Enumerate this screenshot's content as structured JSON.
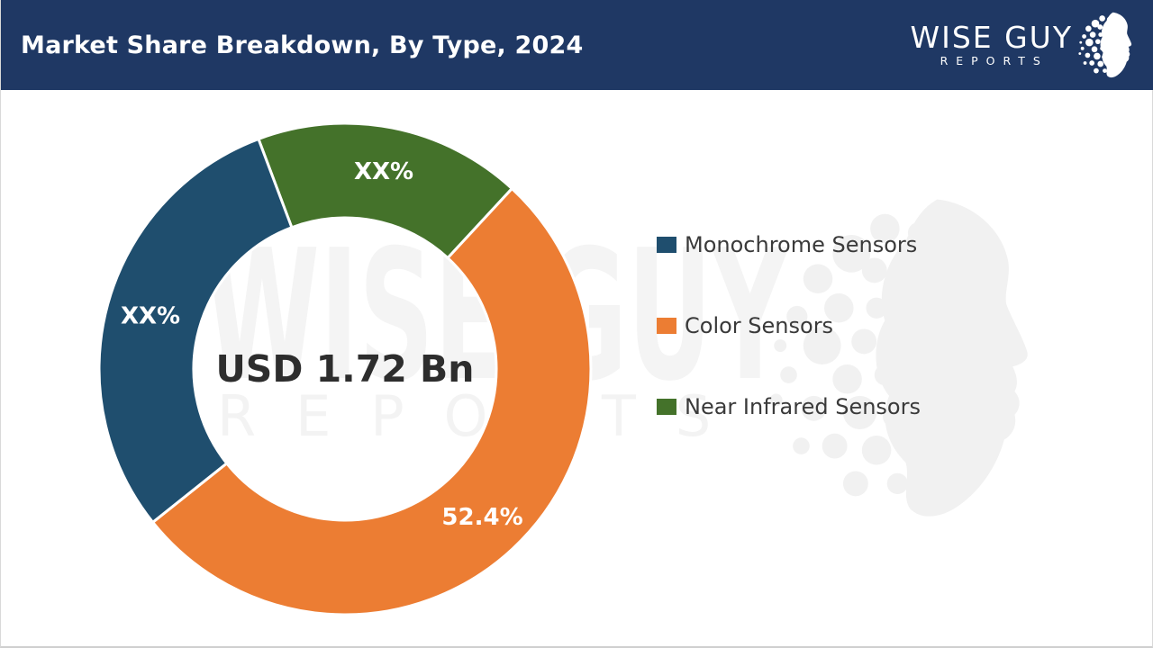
{
  "header": {
    "title": "Market Share Breakdown, By Type, 2024",
    "bg_color": "#1f3864",
    "logo": {
      "wordmark": "WISE GUY",
      "subtext": "REPORTS"
    }
  },
  "watermark": {
    "wordmark": "WISE GUY",
    "subtext": "REPORTS"
  },
  "chart_data": {
    "type": "pie",
    "variant": "donut",
    "title": "Market Share Breakdown, By Type, 2024",
    "center_label": "USD 1.72 Bn",
    "start_angle_deg": -20.6,
    "direction": "clockwise",
    "inner_radius_ratio": 0.615,
    "segments": [
      {
        "name": "Near Infrared Sensors",
        "value_pct": 17.6,
        "display_label": "XX%",
        "color": "#44722a"
      },
      {
        "name": "Color Sensors",
        "value_pct": 52.4,
        "display_label": "52.4%",
        "color": "#ec7d33"
      },
      {
        "name": "Monochrome Sensors",
        "value_pct": 30.0,
        "display_label": "XX%",
        "color": "#1f4e6e"
      }
    ],
    "legend": {
      "position": "right",
      "order": [
        "Monochrome Sensors",
        "Color Sensors",
        "Near Infrared Sensors"
      ]
    },
    "colors": {
      "wedge_edge": "#ffffff",
      "label_text": "#ffffff",
      "center_text": "#2d2d2d"
    }
  }
}
